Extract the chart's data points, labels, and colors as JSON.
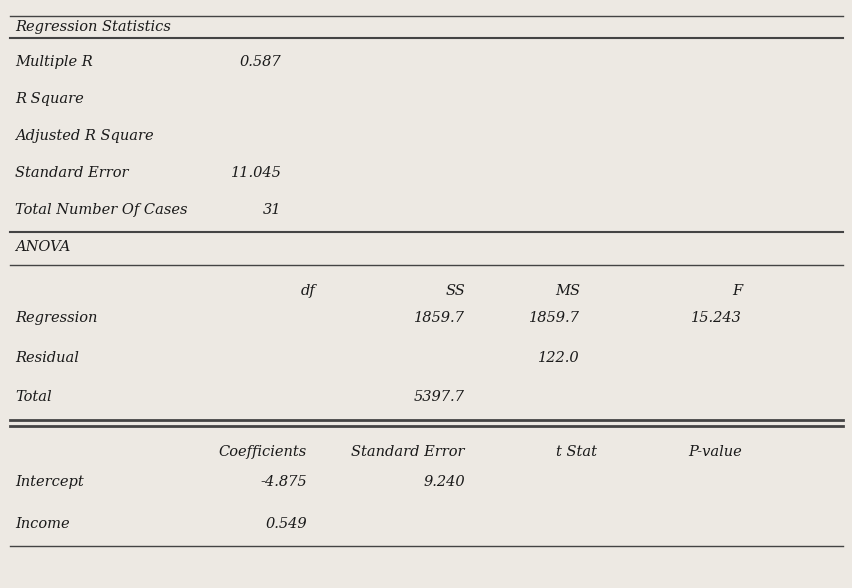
{
  "background_color": "#ede9e3",
  "text_color": "#1a1a1a",
  "font_size": 10.5,
  "fig_width": 8.53,
  "fig_height": 5.88,
  "col_x": {
    "label": 0.018,
    "val1": 0.33,
    "df": 0.37,
    "SS": 0.545,
    "MS": 0.68,
    "F": 0.87,
    "coeff": 0.36,
    "stderr": 0.545,
    "tstat": 0.7,
    "pvalue": 0.87
  },
  "regression_stats": {
    "title": "Regression Statistics",
    "rows": [
      {
        "label": "Multiple R",
        "value": "0.587"
      },
      {
        "label": "R Square",
        "value": ""
      },
      {
        "label": "Adjusted R Square",
        "value": ""
      },
      {
        "label": "Standard Error",
        "value": "11.045"
      },
      {
        "label": "Total Number Of Cases",
        "value": "31"
      }
    ]
  },
  "anova": {
    "title": "ANOVA",
    "header": [
      "",
      "df",
      "SS",
      "MS",
      "F"
    ],
    "rows": [
      [
        "Regression",
        "",
        "1859.7",
        "1859.7",
        "15.243"
      ],
      [
        "Residual",
        "",
        "",
        "122.0",
        ""
      ],
      [
        "Total",
        "",
        "5397.7",
        "",
        ""
      ]
    ]
  },
  "coefficients": {
    "header": [
      "",
      "Coefficients",
      "Standard Error",
      "t Stat",
      "P-value"
    ],
    "rows": [
      [
        "Intercept",
        "-4.875",
        "9.240",
        "",
        ""
      ],
      [
        "Income",
        "0.549",
        "",
        "",
        ""
      ]
    ]
  }
}
